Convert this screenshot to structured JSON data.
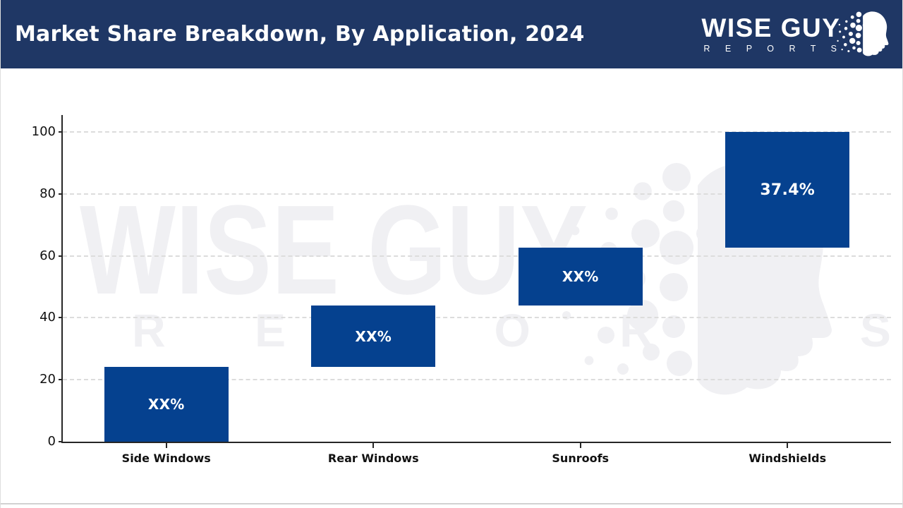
{
  "header": {
    "title": "Market Share Breakdown, By Application, 2024",
    "background_color": "#1f3765",
    "logo": {
      "wordmark": "WISE GUY",
      "subtext": "R E P O R T S"
    }
  },
  "watermark": {
    "wordmark": "WISE GUY",
    "subtext": "R E P O R T S",
    "color": "#f0f0f3"
  },
  "chart_data": {
    "type": "bar",
    "subtype": "waterfall",
    "title": "Market Share Breakdown, By Application, 2024",
    "categories": [
      "Side Windows",
      "Rear Windows",
      "Sunroofs",
      "Windshields"
    ],
    "segments": [
      {
        "category": "Side Windows",
        "start": 0,
        "end": 24.1,
        "value_label": "XX%"
      },
      {
        "category": "Rear Windows",
        "start": 24.1,
        "end": 44.0,
        "value_label": "XX%"
      },
      {
        "category": "Sunroofs",
        "start": 44.0,
        "end": 62.6,
        "value_label": "XX%"
      },
      {
        "category": "Windshields",
        "start": 62.6,
        "end": 100,
        "value_label": "37.4%"
      }
    ],
    "xlabel": "",
    "ylabel": "",
    "ylim": [
      0,
      105.5
    ],
    "yticks": [
      0,
      20,
      40,
      60,
      80,
      100
    ],
    "grid": "horizontal-dashed",
    "legend": null,
    "bar_color": "#05418f",
    "bar_label_color": "#ffffff",
    "axis_color": "#262626",
    "gridline_color": "#dcdcdc"
  }
}
